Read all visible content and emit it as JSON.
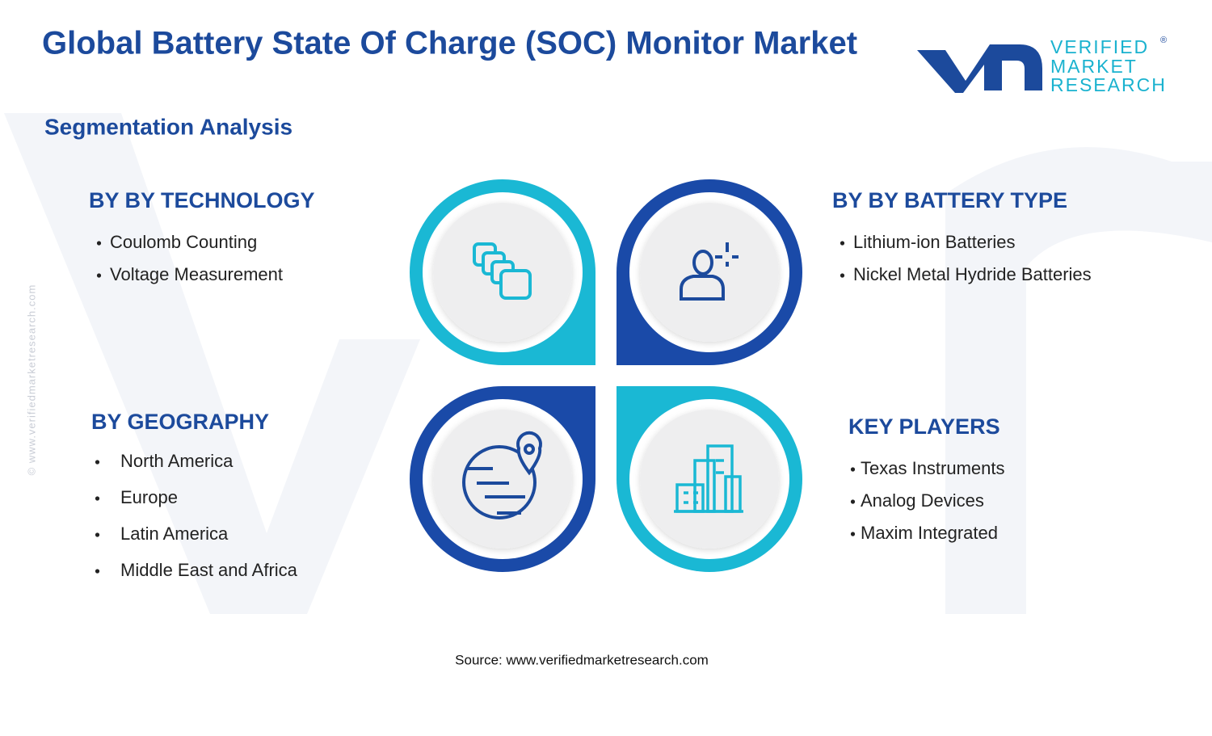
{
  "header": {
    "title": "Global Battery State Of Charge (SOC) Monitor Market",
    "logo": {
      "line1": "VERIFIED",
      "line2": "MARKET",
      "line3": "RESEARCH",
      "mark": "®"
    }
  },
  "subtitle": "Segmentation Analysis",
  "segments": [
    {
      "heading": "BY BY TECHNOLOGY",
      "items": [
        "Coulomb Counting",
        "Voltage Measurement"
      ]
    },
    {
      "heading": "BY BY BATTERY TYPE",
      "items": [
        "Lithium-ion Batteries",
        "Nickel Metal Hydride Batteries"
      ]
    },
    {
      "heading": "BY GEOGRAPHY",
      "items": [
        "North America",
        "Europe",
        "Latin America",
        "Middle East and Africa"
      ]
    },
    {
      "heading": "KEY PLAYERS",
      "items": [
        "Texas Instruments",
        "Analog Devices",
        "Maxim Integrated"
      ]
    }
  ],
  "source": "Source: www.verifiedmarketresearch.com",
  "watermark": "© www.verifiedmarketresearch.com"
}
